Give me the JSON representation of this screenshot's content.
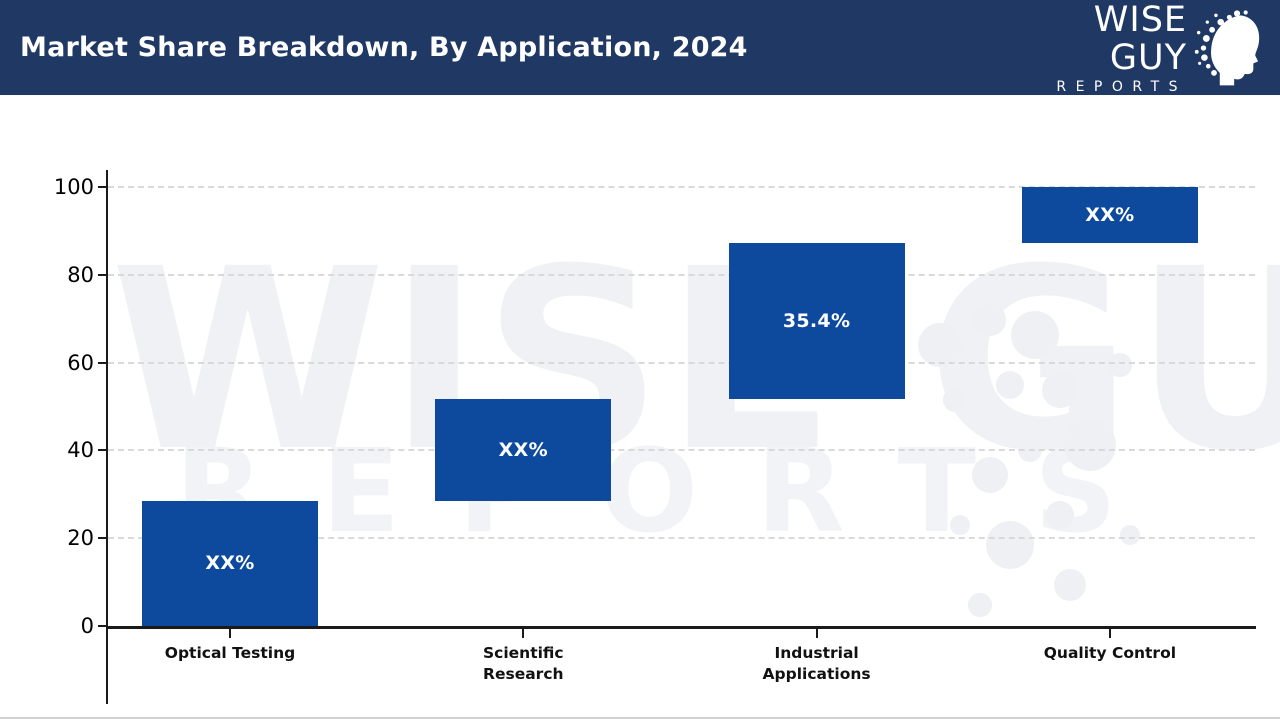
{
  "header": {
    "title": "Market Share Breakdown, By Application, 2024",
    "bg_color": "#1f3864",
    "logo": {
      "line1": "WISE GUY",
      "line2": "REPORTS"
    }
  },
  "watermark": {
    "line1": "WISE GUY",
    "line2": "REPORTS"
  },
  "chart_data": {
    "type": "bar",
    "subtype": "waterfall",
    "title": "Market Share Breakdown, By Application, 2024",
    "categories": [
      "Optical Testing",
      "Scientific Research",
      "Industrial Applications",
      "Quality Control"
    ],
    "category_label_lines": [
      [
        "Optical Testing"
      ],
      [
        "Scientific",
        "Research"
      ],
      [
        "Industrial",
        "Applications"
      ],
      [
        "Quality Control"
      ]
    ],
    "segments": [
      {
        "category": "Optical Testing",
        "start": 0,
        "end": 28.5,
        "label": "XX%"
      },
      {
        "category": "Scientific Research",
        "start": 28.5,
        "end": 51.8,
        "label": "XX%"
      },
      {
        "category": "Industrial Applications",
        "start": 51.8,
        "end": 87.2,
        "label": "35.4%"
      },
      {
        "category": "Quality Control",
        "start": 87.2,
        "end": 100,
        "label": "XX%"
      }
    ],
    "y_ticks": [
      0,
      20,
      40,
      60,
      80,
      100
    ],
    "ylim": [
      0,
      105
    ],
    "xlabel": "",
    "ylabel": "",
    "grid": "horizontal-dashed",
    "legend": "none",
    "bar_color": "#0d4a9e",
    "bar_label_color": "#ffffff",
    "grid_color": "#d9d9d9",
    "axis_color": "#1a1a1a"
  }
}
